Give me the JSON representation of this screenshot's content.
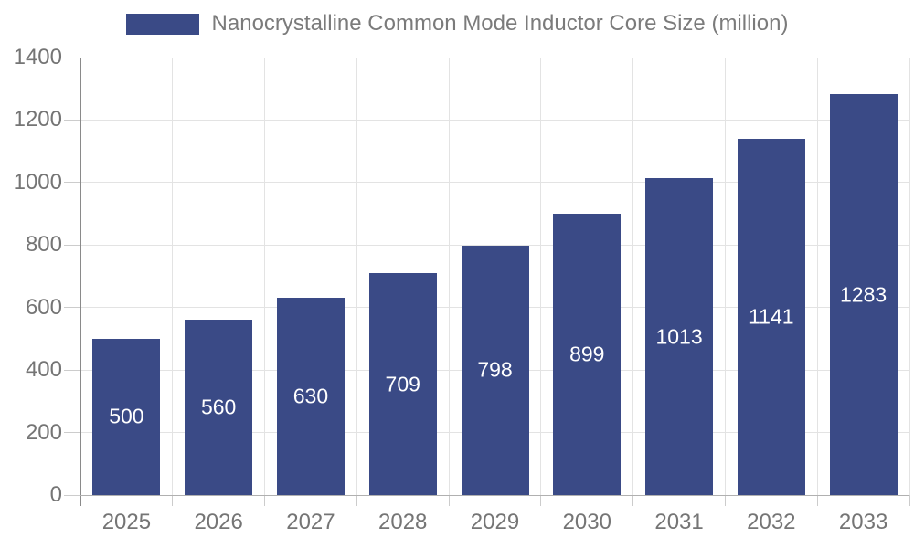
{
  "legend": {
    "label": "Nanocrystalline Common Mode Inductor Core Size (million)"
  },
  "chart_data": {
    "type": "bar",
    "title": "Nanocrystalline Common Mode Inductor Core Size (million)",
    "series_name": "Nanocrystalline Common Mode Inductor Core Size (million)",
    "categories": [
      "2025",
      "2026",
      "2027",
      "2028",
      "2029",
      "2030",
      "2031",
      "2032",
      "2033"
    ],
    "values": [
      500,
      560,
      630,
      709,
      798,
      899,
      1013,
      1141,
      1283
    ],
    "value_labels": [
      "500",
      "560",
      "630",
      "709",
      "798",
      "899",
      "1013",
      "1141",
      "1283"
    ],
    "xlabel": "",
    "ylabel": "",
    "ylim": [
      0,
      1400
    ],
    "ytick_step": 200,
    "ytick_labels": [
      "0",
      "200",
      "400",
      "600",
      "800",
      "1000",
      "1200",
      "1400"
    ],
    "grid": true,
    "legend_position": "top-center",
    "value_label_position": "inside-center",
    "colors": {
      "bar": "#3A4A86",
      "value_label": "#ffffff",
      "axis_text": "#757575",
      "legend_text": "#7b7b7b",
      "gridline": "#e3e3e3",
      "y_axis_line": "#8a8a8a",
      "x_axis_line": "#b0b0b0",
      "tick": "#cccccc",
      "background": "#ffffff"
    }
  }
}
